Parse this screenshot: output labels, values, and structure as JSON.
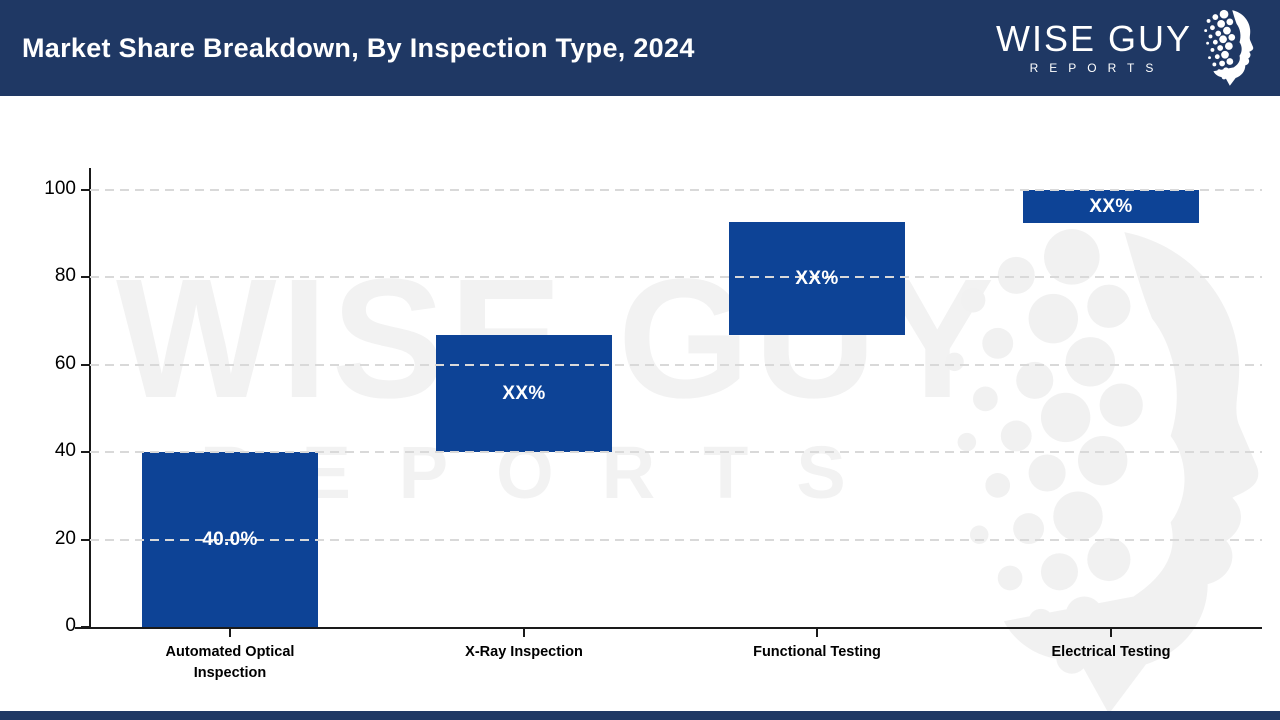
{
  "header": {
    "title": "Market Share Breakdown, By Inspection Type, 2024",
    "logo": {
      "line1": "WISE GUY",
      "line2": "REPORTS",
      "face_icon": "wiseguy-face-icon"
    }
  },
  "watermark": {
    "line1": "WISE GUY",
    "line2": "REPORTS",
    "face_icon": "wiseguy-face-watermark"
  },
  "colors": {
    "header_bg": "#1f3864",
    "bar": "#0d4396",
    "bar_label": "#ffffff",
    "axis": "#1a1a1a",
    "grid": "#d9d9d9",
    "watermark": "#f2f2f2"
  },
  "chart_data": {
    "type": "bar",
    "subtype": "waterfall",
    "title": "Market Share Breakdown, By Inspection Type, 2024",
    "categories": [
      "Automated Optical Inspection",
      "X-Ray Inspection",
      "Functional Testing",
      "Electrical Testing"
    ],
    "segments": [
      {
        "category": "Automated Optical Inspection",
        "start": 0,
        "end": 40,
        "value": 40.0,
        "label": "40.0%"
      },
      {
        "category": "X-Ray Inspection",
        "start": 40,
        "end": 66.7,
        "value": 26.7,
        "label": "XX%"
      },
      {
        "category": "Functional Testing",
        "start": 66.7,
        "end": 92.5,
        "value": 25.8,
        "label": "XX%"
      },
      {
        "category": "Electrical Testing",
        "start": 92.5,
        "end": 100,
        "value": 7.5,
        "label": "XX%"
      }
    ],
    "yticks": [
      0,
      20,
      40,
      60,
      80,
      100
    ],
    "ylim": [
      0,
      105
    ],
    "xlabel": "",
    "ylabel": "",
    "grid": "dashed-horizontal",
    "legend": "none",
    "bar_color": "#0d4396"
  }
}
